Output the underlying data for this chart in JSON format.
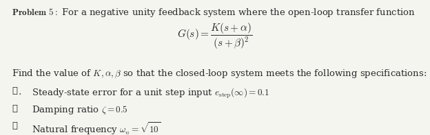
{
  "background_color": "#f5f5f0",
  "text_color": "#2a2a2a",
  "font_size": 9.5,
  "fig_width": 6.24,
  "fig_height": 1.97,
  "dpi": 100
}
